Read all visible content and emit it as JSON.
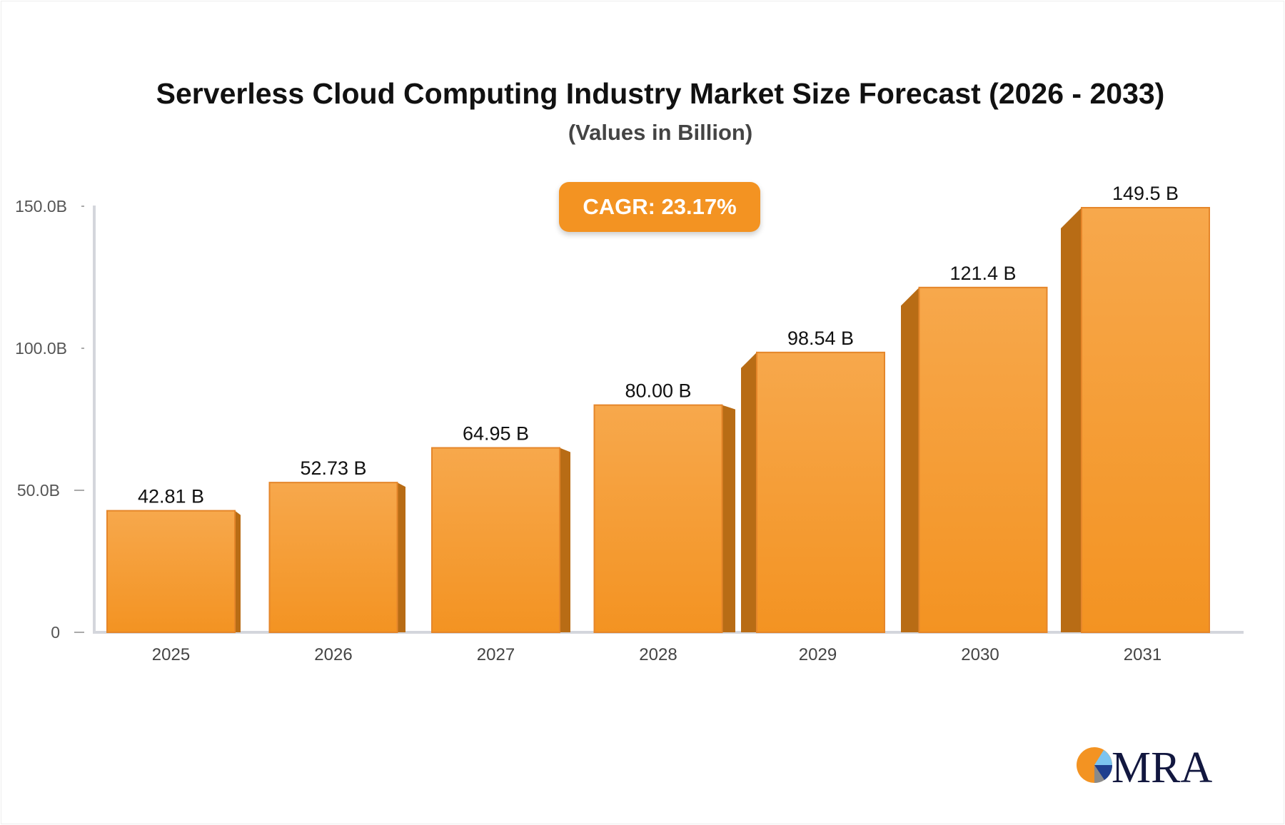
{
  "chart_data": {
    "type": "bar",
    "title": "Serverless Cloud Computing Industry Market Size Forecast (2026 - 2033)",
    "subtitle": "(Values in Billion)",
    "annotation": "CAGR: 23.17%",
    "categories": [
      "2025",
      "2026",
      "2027",
      "2028",
      "2029",
      "2030",
      "2031"
    ],
    "values": [
      42.81,
      52.73,
      64.95,
      80.0,
      98.54,
      121.4,
      149.5
    ],
    "data_labels": [
      "42.81 B",
      "52.73 B",
      "64.95 B",
      "80.00 B",
      "98.54 B",
      "121.4 B",
      "149.5 B"
    ],
    "yticks": [
      0,
      50,
      100,
      150
    ],
    "ytick_labels": [
      "0",
      "50.0B",
      "100.0B",
      "150.0B"
    ],
    "ylim": [
      0,
      150
    ],
    "xlabel": "",
    "ylabel": "",
    "grid": false,
    "bar_color": "#f39322",
    "bar_side_color": "#b86c15"
  },
  "logo": {
    "text": "MRA",
    "text_color": "#12173f"
  }
}
